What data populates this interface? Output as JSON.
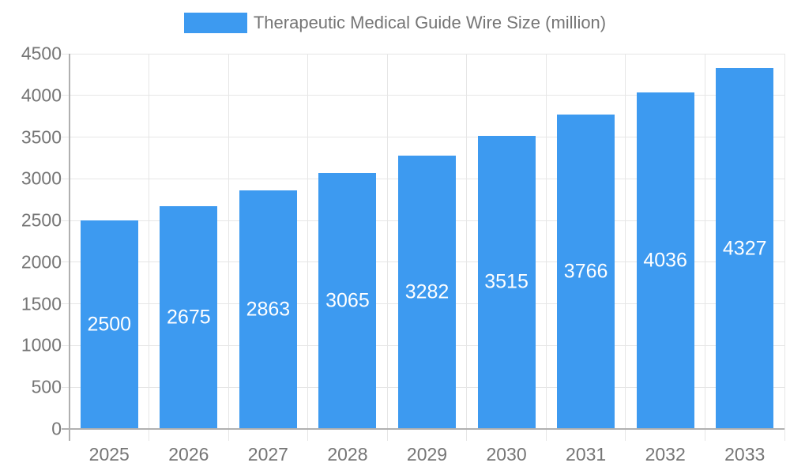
{
  "legend": {
    "label": "Therapeutic Medical Guide Wire Size (million)"
  },
  "chart_data": {
    "type": "bar",
    "title": "",
    "xlabel": "",
    "ylabel": "",
    "series_name": "Therapeutic Medical Guide Wire Size (million)",
    "categories": [
      "2025",
      "2026",
      "2027",
      "2028",
      "2029",
      "2030",
      "2031",
      "2032",
      "2033"
    ],
    "values": [
      2500,
      2675,
      2863,
      3065,
      3282,
      3515,
      3766,
      4036,
      4327
    ],
    "data_labels": [
      "2500",
      "2675",
      "2863",
      "3065",
      "3282",
      "3515",
      "3766",
      "4036",
      "4327"
    ],
    "ylim": [
      0,
      4500
    ],
    "ytick_step": 500,
    "ytick_labels": [
      "0",
      "500",
      "1000",
      "1500",
      "2000",
      "2500",
      "3000",
      "3500",
      "4000",
      "4500"
    ],
    "grid": true,
    "legend_position": "top",
    "colors": {
      "bar": "#3d9af0",
      "bar_label": "#ffffff",
      "gridline": "#e6e6e6",
      "axis_line": "#b0b0b0",
      "axis_text": "#757575",
      "legend_text": "#757575",
      "background": "#ffffff"
    }
  }
}
